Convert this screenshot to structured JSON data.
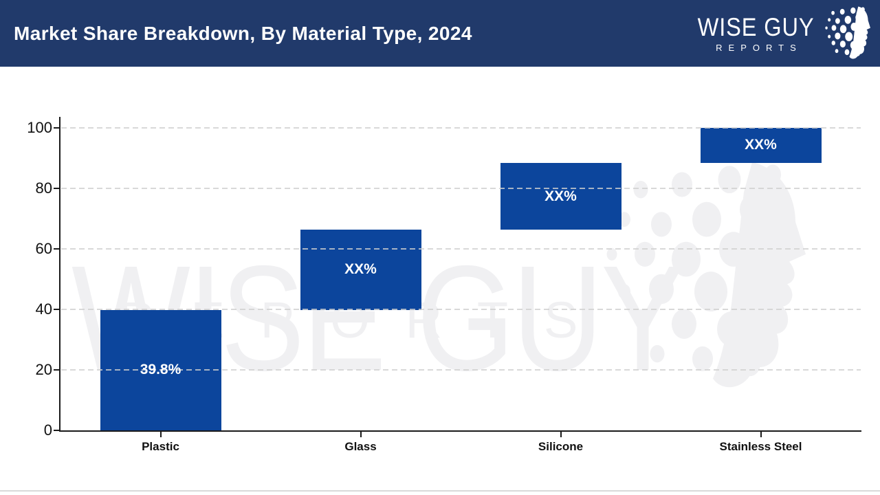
{
  "header": {
    "title": "Market Share Breakdown, By Material Type, 2024",
    "logo": {
      "line1": "WISE GUY",
      "line2": "REPORTS"
    }
  },
  "watermark": {
    "line1": "WISE GUY",
    "line2": "REPORTS"
  },
  "chart_data": {
    "type": "bar",
    "subtype": "waterfall",
    "title": "Market Share Breakdown, By Material Type, 2024",
    "categories": [
      "Plastic",
      "Glass",
      "Silicone",
      "Stainless Steel"
    ],
    "bars": [
      {
        "category": "Plastic",
        "start": 0,
        "end": 39.8,
        "label": "39.8%"
      },
      {
        "category": "Glass",
        "start": 39.8,
        "end": 66.3,
        "label": "XX%"
      },
      {
        "category": "Silicone",
        "start": 66.3,
        "end": 88.3,
        "label": "XX%"
      },
      {
        "category": "Stainless Steel",
        "start": 88.3,
        "end": 100,
        "label": "XX%"
      }
    ],
    "yticks": [
      0,
      20,
      40,
      60,
      80,
      100
    ],
    "ylim": [
      0,
      103.5
    ],
    "xlabel": "",
    "ylabel": "",
    "grid": "dashed-horizontal-over-bars",
    "legend": "none"
  },
  "colors": {
    "header_bg": "#213a6b",
    "bar": "#0c459c",
    "bar_label": "#ffffff",
    "watermark": "#f0f0f2",
    "grid": "#cfcfcf",
    "axis": "#1a1a1a",
    "footer_line": "#d9d9d9"
  }
}
